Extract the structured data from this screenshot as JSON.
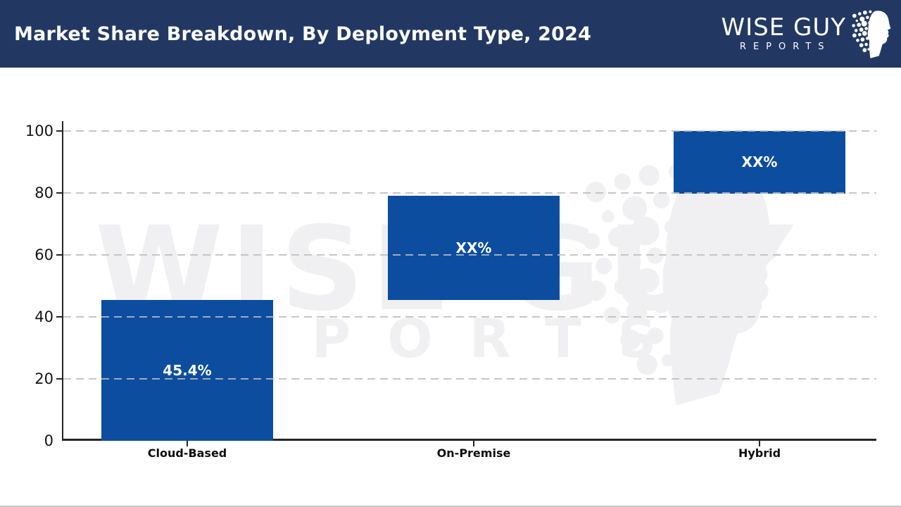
{
  "header": {
    "title": "Market Share Breakdown, By Deployment Type, 2024",
    "bg_color": "#223863",
    "logo": {
      "line1": "WISE GUY",
      "line2": "REPORTS"
    }
  },
  "watermark": {
    "line1": "WISE GUY",
    "line2": "REPORTS"
  },
  "chart_data": {
    "type": "bar",
    "subtype": "floating-segment-waterfall",
    "title": "",
    "xlabel": "",
    "ylabel": "",
    "categories": [
      "Cloud-Based",
      "On-Premise",
      "Hybrid"
    ],
    "segments": [
      {
        "category": "Cloud-Based",
        "start": 0,
        "end": 45.4,
        "label": "45.4%"
      },
      {
        "category": "On-Premise",
        "start": 45.4,
        "end": 79.2,
        "label": "XX%"
      },
      {
        "category": "Hybrid",
        "start": 79.8,
        "end": 100,
        "label": "XX%"
      }
    ],
    "yticks": [
      0,
      20,
      40,
      60,
      80,
      100
    ],
    "ylim": [
      0,
      100
    ],
    "grid": "dashed-horizontal",
    "legend": "none",
    "bar_color": "#0c4da0",
    "bar_label_color": "#ffffff",
    "axis_color": "#262626",
    "gridline_color": "#bcbcbc"
  }
}
